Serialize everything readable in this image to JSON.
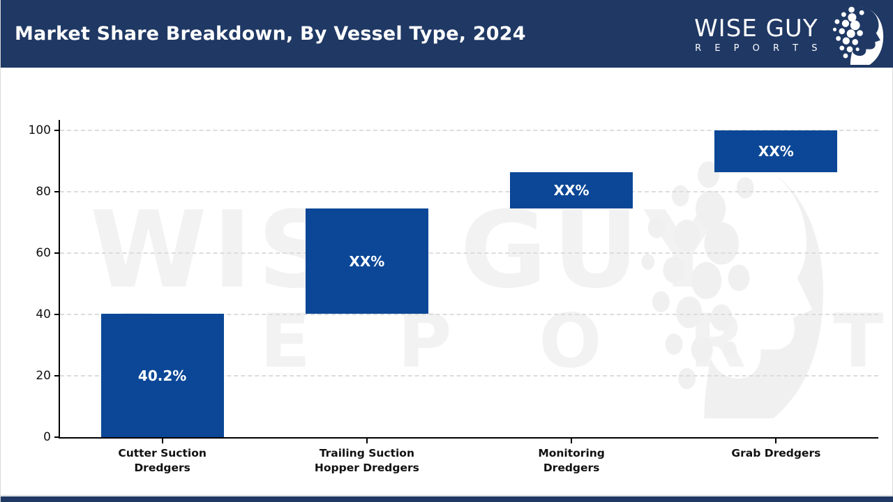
{
  "header": {
    "title": "Market Share Breakdown, By Vessel Type, 2024",
    "logo": {
      "name_top": "WISE GUY",
      "name_bottom": "R E P O R T S"
    }
  },
  "watermark": {
    "text_top": "WISE GUY",
    "text_bottom": "R E P O R T S"
  },
  "chart_data": {
    "type": "bar",
    "subtype": "waterfall",
    "title": "Market Share Breakdown, By Vessel Type, 2024",
    "categories": [
      [
        "Cutter Suction",
        "Dredgers"
      ],
      [
        "Trailing Suction",
        "Hopper Dredgers"
      ],
      [
        "Monitoring",
        "Dredgers"
      ],
      [
        "Grab Dredgers"
      ]
    ],
    "bars": [
      {
        "from": 0,
        "to": 40.2,
        "label": "40.2%"
      },
      {
        "from": 40.2,
        "to": 74.5,
        "label": "XX%"
      },
      {
        "from": 74.5,
        "to": 86.3,
        "label": "XX%"
      },
      {
        "from": 86.3,
        "to": 100,
        "label": "XX%"
      }
    ],
    "ylim": [
      0,
      100
    ],
    "yticks": [
      0,
      20,
      40,
      60,
      80,
      100
    ],
    "grid": "horizontal-dashed",
    "legend": "none",
    "bar_color": "#0b4796",
    "bar_label_color": "#ffffff",
    "axis_color": "#000000",
    "gridline_color": "#dcdcdc",
    "background_color": "#ffffff",
    "header_color": "#1f3864"
  }
}
